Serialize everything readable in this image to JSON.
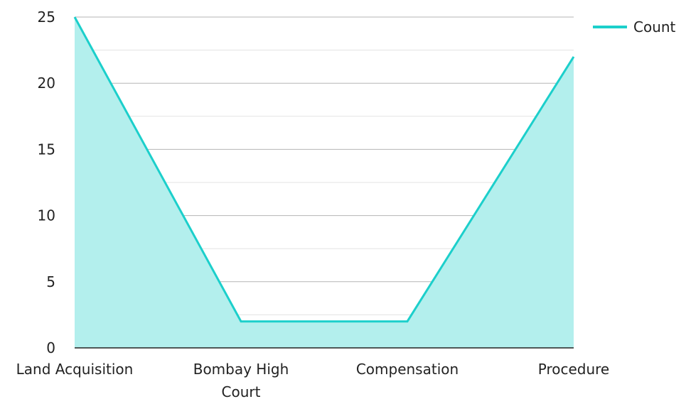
{
  "chart_data": {
    "type": "area",
    "categories": [
      "Land Acquisition",
      "Bombay High Court",
      "Compensation",
      "Procedure"
    ],
    "series": [
      {
        "name": "Count",
        "values": [
          25,
          2,
          2,
          22
        ]
      }
    ],
    "title": "",
    "xlabel": "",
    "ylabel": "",
    "ylim": [
      0,
      25
    ],
    "yticks": [
      0,
      5,
      10,
      15,
      20,
      25
    ],
    "grid": true,
    "legend": "top-right",
    "colors": {
      "line": "#1ccfcb",
      "fill": "#b3efed",
      "grid_major": "#b5b5b5",
      "grid_minor": "#e3e3e3",
      "axis": "#222222"
    }
  }
}
